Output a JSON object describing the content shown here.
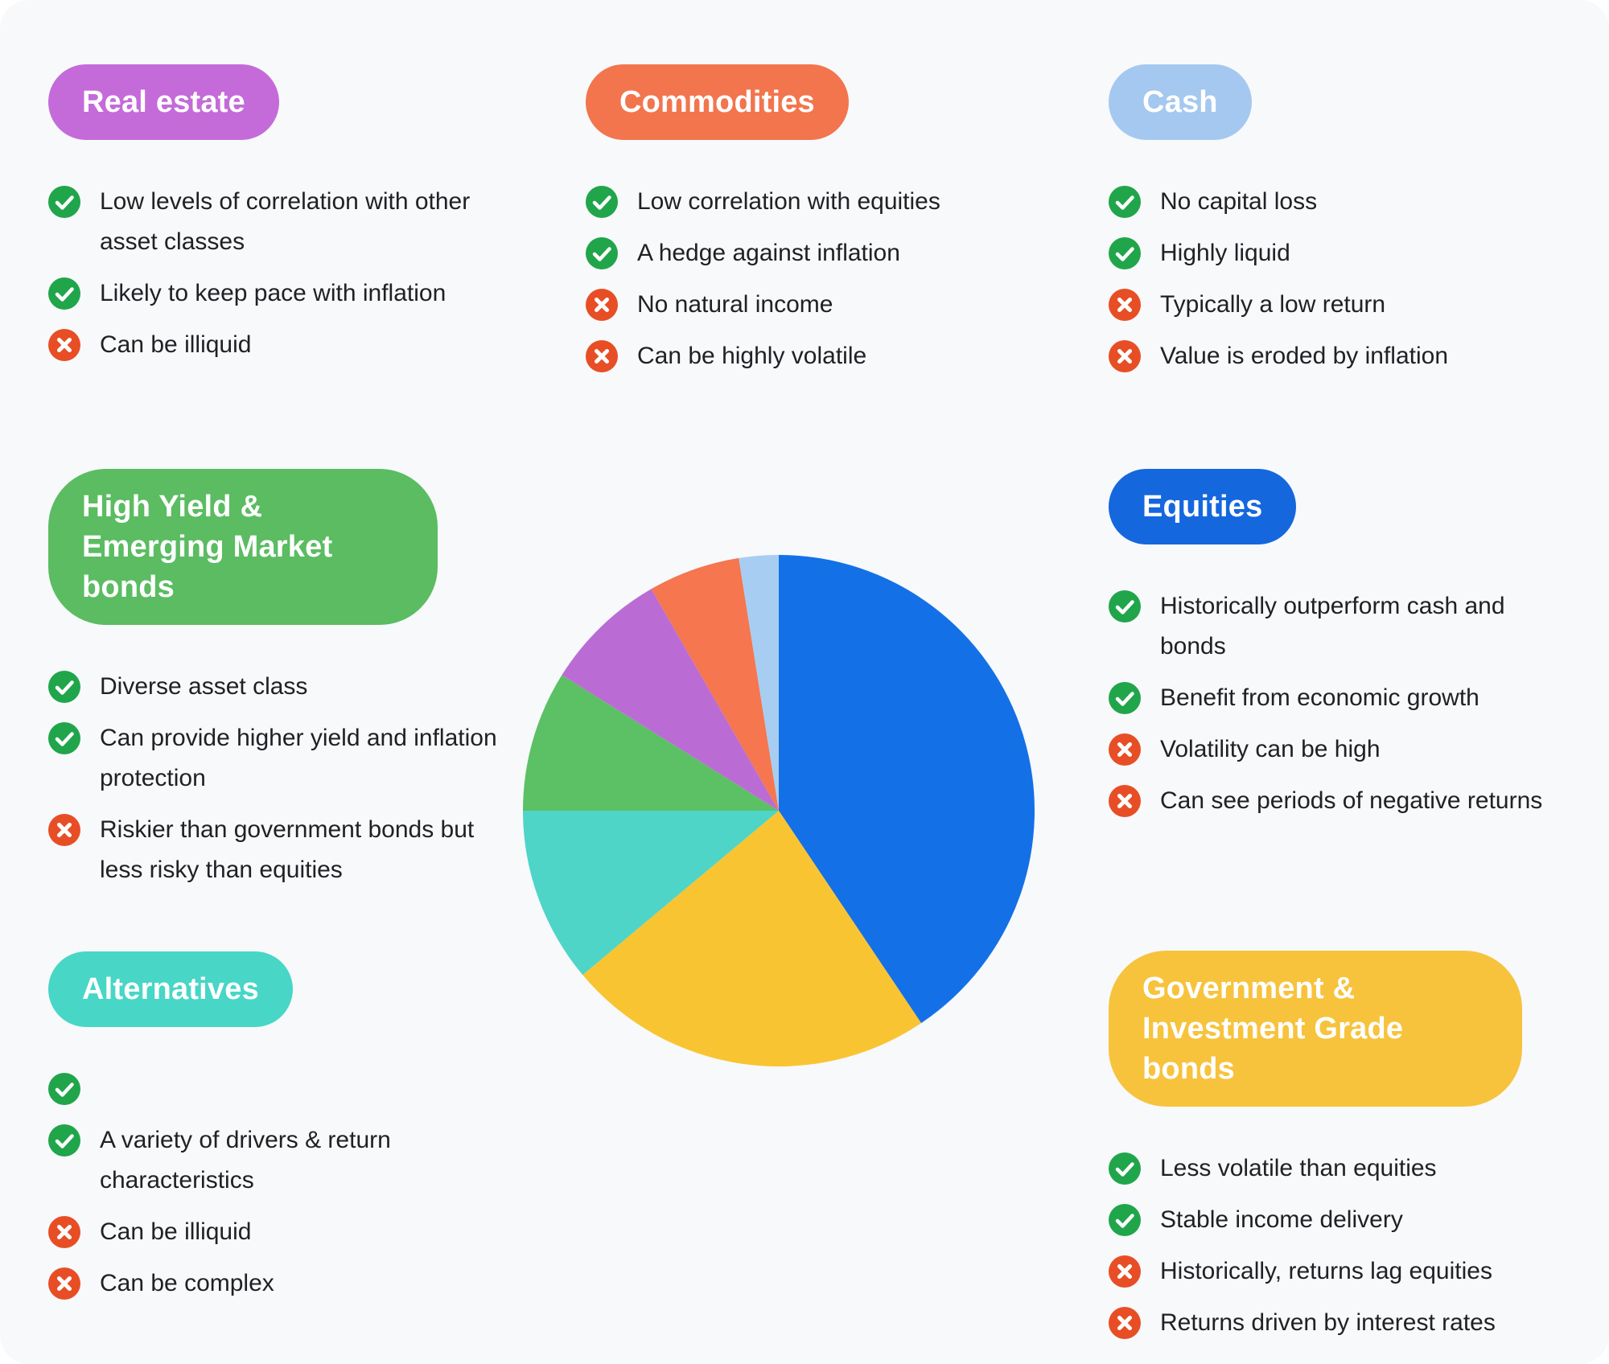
{
  "colors": {
    "background": "#f7f9fb",
    "text": "#202124",
    "check": "#21a54b",
    "cross": "#e84e25"
  },
  "sections": {
    "real_estate": {
      "title": "Real estate",
      "badge_color": "#c46bd9",
      "items": [
        {
          "icon": "check",
          "text": "Low levels of correlation with other asset classes"
        },
        {
          "icon": "check",
          "text": "Likely to keep pace with inflation"
        },
        {
          "icon": "cross",
          "text": "Can be illiquid"
        }
      ]
    },
    "commodities": {
      "title": "Commodities",
      "badge_color": "#f2754e",
      "items": [
        {
          "icon": "check",
          "text": "Low correlation with equities"
        },
        {
          "icon": "check",
          "text": "A hedge against inflation"
        },
        {
          "icon": "cross",
          "text": "No natural income"
        },
        {
          "icon": "cross",
          "text": "Can be highly volatile"
        }
      ]
    },
    "cash": {
      "title": "Cash",
      "badge_color": "#a5c8f0",
      "items": [
        {
          "icon": "check",
          "text": "No capital loss"
        },
        {
          "icon": "check",
          "text": "Highly liquid"
        },
        {
          "icon": "cross",
          "text": "Typically a low return"
        },
        {
          "icon": "cross",
          "text": "Value is eroded by inflation"
        }
      ]
    },
    "high_yield_em_bonds": {
      "title": "High Yield & Emerging Market bonds",
      "badge_color": "#5bbc62",
      "items": [
        {
          "icon": "check",
          "text": "Diverse asset class"
        },
        {
          "icon": "check",
          "text": "Can provide higher yield and inflation protection"
        },
        {
          "icon": "cross",
          "text": "Riskier than government bonds but less risky than equities"
        }
      ]
    },
    "equities": {
      "title": "Equities",
      "badge_color": "#1567dd",
      "items": [
        {
          "icon": "check",
          "text": "Historically outperform cash and bonds"
        },
        {
          "icon": "check",
          "text": "Benefit from economic growth"
        },
        {
          "icon": "cross",
          "text": "Volatility can be high"
        },
        {
          "icon": "cross",
          "text": "Can see periods of negative returns"
        }
      ]
    },
    "alternatives": {
      "title": "Alternatives",
      "badge_color": "#48d6c6",
      "items": [
        {
          "icon": "check",
          "text": ""
        },
        {
          "icon": "check",
          "text": "A variety of drivers & return characteristics"
        },
        {
          "icon": "cross",
          "text": "Can be illiquid"
        },
        {
          "icon": "cross",
          "text": "Can be complex"
        }
      ]
    },
    "gov_ig_bonds": {
      "title": "Government & Investment Grade bonds",
      "badge_color": "#f7c33d",
      "items": [
        {
          "icon": "check",
          "text": "Less volatile than equities"
        },
        {
          "icon": "check",
          "text": "Stable income delivery"
        },
        {
          "icon": "cross",
          "text": "Historically, returns lag equities"
        },
        {
          "icon": "cross",
          "text": "Returns driven by interest rates"
        }
      ]
    }
  },
  "chart_data": {
    "type": "pie",
    "title": "",
    "start_angle_deg": 0,
    "direction": "clockwise",
    "legend_position": "none",
    "data_labels": "none",
    "radius_px": 318,
    "segments": [
      {
        "label": "Equities",
        "percent": 40.6,
        "color": "#1470e6"
      },
      {
        "label": "Government & Investment Grade bonds",
        "percent": 23.3,
        "color": "#f9c431"
      },
      {
        "label": "Alternatives",
        "percent": 11.1,
        "color": "#4fd4c8"
      },
      {
        "label": "High Yield & Emerging Market bonds",
        "percent": 8.9,
        "color": "#5cc065"
      },
      {
        "label": "Real estate",
        "percent": 7.8,
        "color": "#bb6cd4"
      },
      {
        "label": "Commodities",
        "percent": 5.8,
        "color": "#f5764f"
      },
      {
        "label": "Cash",
        "percent": 2.5,
        "color": "#a8cdf2"
      }
    ]
  }
}
